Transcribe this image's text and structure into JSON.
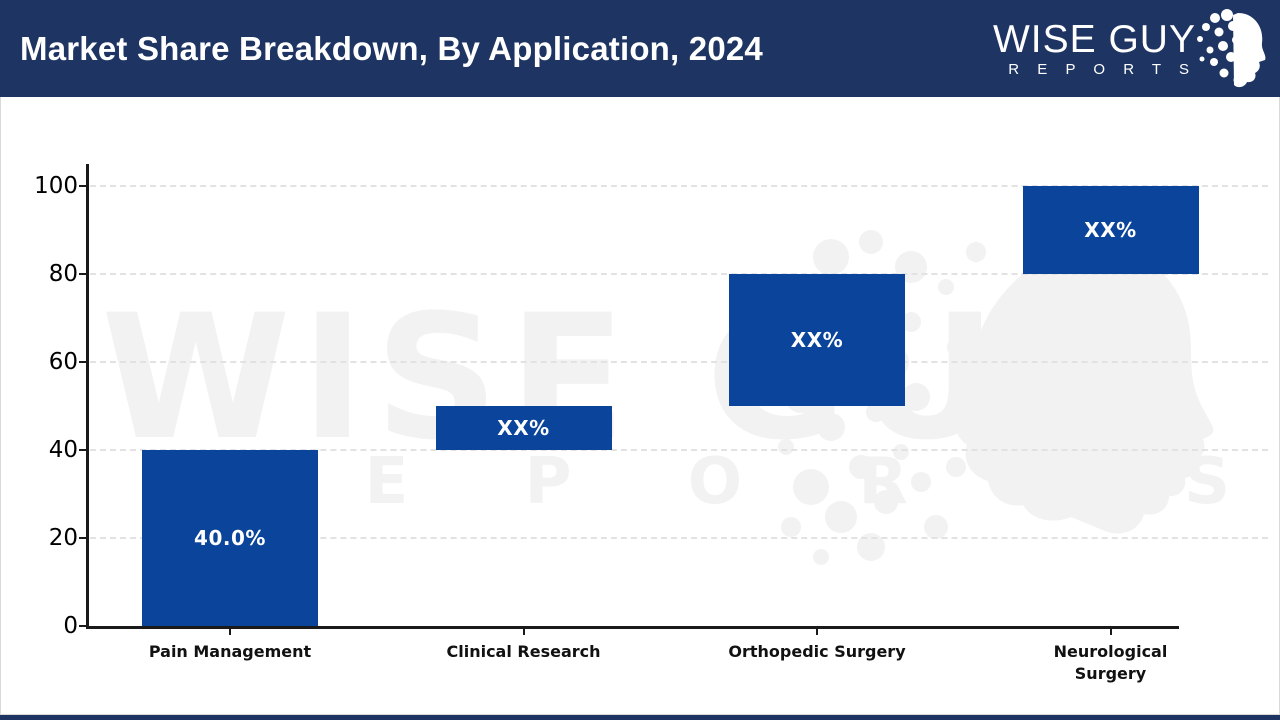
{
  "header": {
    "title": "Market Share Breakdown, By Application, 2024",
    "bg_color": "#1e3563",
    "logo": {
      "line1": "WISE GUY",
      "line2": "R E P O R T S"
    }
  },
  "watermark": {
    "line1": "WISE GUY",
    "line2": "R E P O R T S"
  },
  "icons": {
    "logo_head": "dotted-head-profile",
    "watermark_head": "dotted-head-profile"
  },
  "chart_data": {
    "type": "bar",
    "subtype": "floating-segment-waterfall",
    "title": "Market Share Breakdown, By Application, 2024",
    "categories": [
      "Pain Management",
      "Clinical Research",
      "Orthopedic Surgery",
      "Neurological Surgery"
    ],
    "series": [
      {
        "name": "Market Share (%)",
        "segments": [
          {
            "category": "Pain Management",
            "start": 0,
            "end": 40,
            "label": "40.0%"
          },
          {
            "category": "Clinical Research",
            "start": 40,
            "end": 50,
            "label": "XX%"
          },
          {
            "category": "Orthopedic Surgery",
            "start": 50,
            "end": 80,
            "label": "XX%"
          },
          {
            "category": "Neurological Surgery",
            "start": 80,
            "end": 100,
            "label": "XX%"
          }
        ]
      }
    ],
    "yticks": [
      0,
      20,
      40,
      60,
      80,
      100
    ],
    "ylim": [
      0,
      105
    ],
    "xlabel": "",
    "ylabel": "",
    "grid": "horizontal-dashed",
    "legend": "none",
    "bar_color": "#0a449b",
    "grid_color": "#e2e2e2",
    "axis_color": "#1a1a1a",
    "watermark_color": "#f2f2f2"
  }
}
